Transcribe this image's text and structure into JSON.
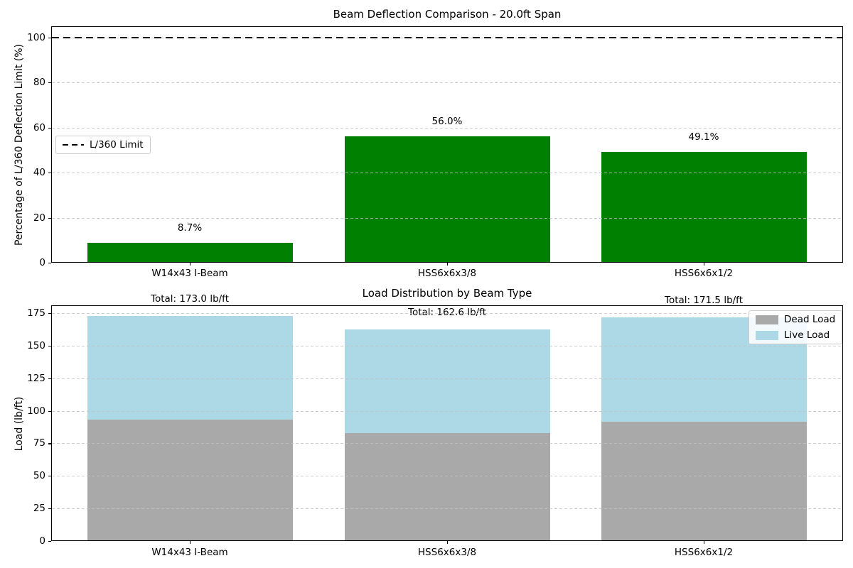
{
  "figure": {
    "background": "#ffffff"
  },
  "chart_data": [
    {
      "type": "bar",
      "title": "Beam Deflection Comparison - 20.0ft Span",
      "ylabel": "Percentage of L/360 Deflection Limit (%)",
      "xlabel": "",
      "categories": [
        "W14x43 I-Beam",
        "HSS6x6x3/8",
        "HSS6x6x1/2"
      ],
      "values": [
        8.7,
        56.0,
        49.1
      ],
      "value_labels": [
        "8.7%",
        "56.0%",
        "49.1%"
      ],
      "bar_color": "#008000",
      "yticks": [
        0,
        20,
        40,
        60,
        80,
        100
      ],
      "ylim": [
        0,
        105
      ],
      "grid": true,
      "reference_line": {
        "value": 100,
        "label": "L/360 Limit",
        "color": "#000000",
        "style": "dashed"
      },
      "legend": [
        "L/360 Limit"
      ],
      "legend_position": "center left"
    },
    {
      "type": "bar",
      "stacked": true,
      "title": "Load Distribution by Beam Type",
      "ylabel": "Load (lb/ft)",
      "xlabel": "",
      "categories": [
        "W14x43 I-Beam",
        "HSS6x6x3/8",
        "HSS6x6x1/2"
      ],
      "series": [
        {
          "name": "Dead Load",
          "values": [
            93.0,
            82.6,
            91.5
          ],
          "color": "#a9a9a9"
        },
        {
          "name": "Live Load",
          "values": [
            80.0,
            80.0,
            80.0
          ],
          "color": "#add8e6"
        }
      ],
      "totals": [
        173.0,
        162.6,
        171.5
      ],
      "total_labels": [
        "Total: 173.0 lb/ft",
        "Total: 162.6 lb/ft",
        "Total: 171.5 lb/ft"
      ],
      "yticks": [
        0,
        25,
        50,
        75,
        100,
        125,
        150,
        175
      ],
      "ylim": [
        0,
        181
      ],
      "grid": true,
      "legend": [
        "Dead Load",
        "Live Load"
      ],
      "legend_position": "upper right"
    }
  ]
}
